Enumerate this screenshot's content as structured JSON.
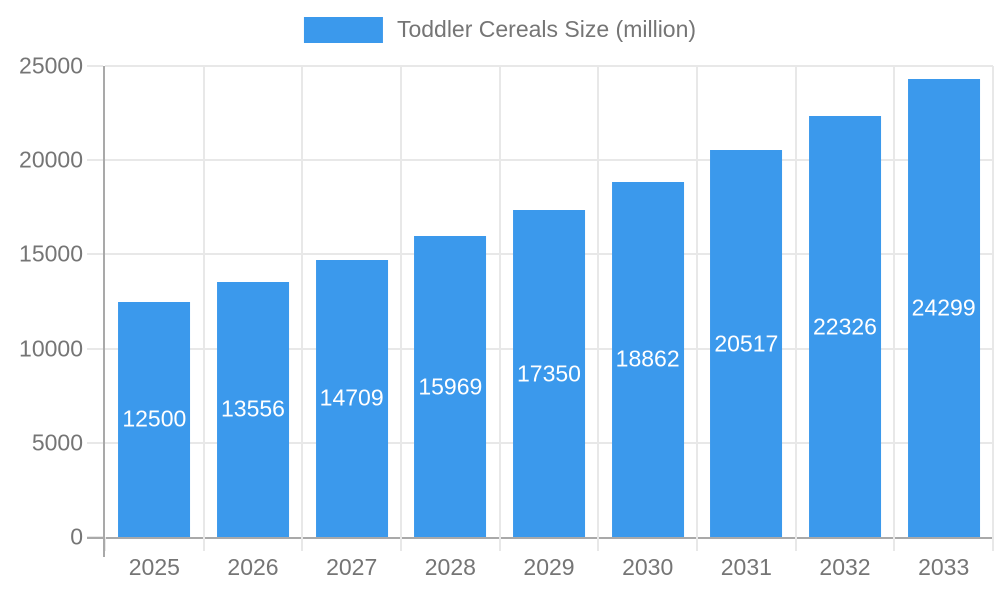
{
  "chart_data": {
    "type": "bar",
    "title": "",
    "legend_label": "Toddler Cereals Size (million)",
    "legend_position": "top",
    "categories": [
      "2025",
      "2026",
      "2027",
      "2028",
      "2029",
      "2030",
      "2031",
      "2032",
      "2033"
    ],
    "values": [
      12500,
      13556,
      14709,
      15969,
      17350,
      18862,
      20517,
      22326,
      24299
    ],
    "xlabel": "",
    "ylabel": "",
    "ylim": [
      0,
      25000
    ],
    "ytick_step": 5000,
    "yticks": [
      "0",
      "5000",
      "10000",
      "15000",
      "20000",
      "25000"
    ],
    "grid": true,
    "value_labels": "inside-center"
  },
  "colors": {
    "bar": "#3b99ec",
    "grid": "#e8e8e8",
    "axis": "#a9a9a9",
    "label_text": "#757575",
    "value_text": "#ffffff",
    "background": "#ffffff"
  }
}
